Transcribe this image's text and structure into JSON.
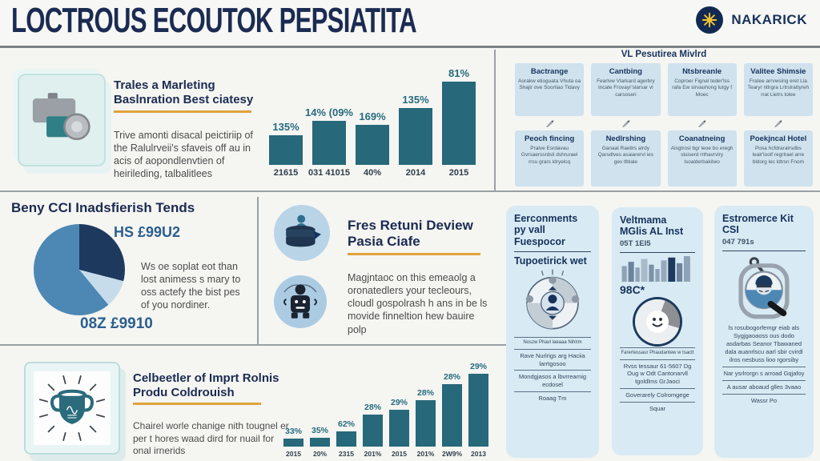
{
  "header": {
    "title": "LOCTROUS ECOUTOK PEPSIATITA",
    "brand": "NAKARICK"
  },
  "strategy_section": {
    "heading": "Trales a Marleting Baslnration Best ciatesy",
    "body": "Trive amonti disacal peictiriip of the Ralulrveii's sfaveis off au in acis of aopondlenvtien of heirileding, talbalitlees"
  },
  "topics_section": {
    "heading": "VL Pesutirea Mivlrd",
    "cards": [
      {
        "title": "Bactrange",
        "body": "Aorakw etioguata Vhuta oa Shajir ove Soortiao Tidavy"
      },
      {
        "title": "Cantbing",
        "body": "Fearlvw Vlarkard agerbry lncate Frovayr'slarsar vl carsoseri"
      },
      {
        "title": "Ntsbreanle",
        "body": "Coproer Fignal teder'lss rafa Ew slrvaohong lutgy f Moec"
      },
      {
        "title": "Valitee Shimsie",
        "body": "Fratee arrvwsing eret Lla Tearyr ntlrgra Lrtrslrattyreh rrat Lletrs tolee"
      },
      {
        "title": "Peoch fincing",
        "body": "Pralve Esrdavau Gvrsaerssrdsli dshrurael rrcu grars ldryelcq"
      },
      {
        "title": "Nedlrshing",
        "body": "Ganaal Raetlrs alrdy Qarsdlves asaiarervl ies gev tlblale"
      },
      {
        "title": "Coanatneing",
        "body": "Aisgtrosl bgr leoe bo eregh sluiserd rrthavrvlry lsoalderbakilwo"
      },
      {
        "title": "Poekjncal Hotel",
        "body": "Posa hcfdraralrsdbs lealr'loolf regrlrael arre bldorg lec ldtrsn Fnom"
      }
    ]
  },
  "trends_section": {
    "heading": "Beny CCI Inadsfierish Tends",
    "label_top": "HS £99U2",
    "label_bottom": "08Z £9910",
    "body": "Ws oe soplat eot than lost animess s mary to oss actefy the bist pes of you nordiner."
  },
  "review_section": {
    "heading": "Fres Retuni Deview Pasia Ciafe",
    "body": "Magjntaoc on this emeaolg a oronatedlers your tecleours, cloudl gospolrash h ans in be ls movide finneltion hew bauire polp"
  },
  "growth_section": {
    "heading": "Celbeetler of Imprt Rolnis Produ Coldrouish",
    "body": "Chairel worle chanige nith tougnel er per t hores waad dird for nuail for onal irnerids"
  },
  "right_columns": [
    {
      "title": "Eerconments py vall Fuespocor",
      "subtitle": "Tupoetirick wet",
      "lines": [
        "Noszw Phavl laeaaa Nihlrm",
        "Rave Nurlrigs arg Haciia larrtgosoo",
        "Mondgjasos a lbvrrearnig ecdosel",
        "Roaag Tm"
      ]
    },
    {
      "title": "Veltmama MGlis AL Inst",
      "stat_small": "05T 1EI5",
      "stat_big": "98C*",
      "lines": [
        "Farertessaur Phaudantew w tsactt",
        "Rvss tessaur 61-5607 Dg Oug w Odt Cantonarvll tgoldlms GrJaoci",
        "Goverarely Colromgege",
        "Squar"
      ]
    },
    {
      "title": "Estromerce Kit CSI",
      "stat_small": "047 791s",
      "body": "ls rosubogorfemgr eiab als Sygjgaoaoss ous dodo asdarbas Seanor Tbawaned dala auanrlscu aarl sbir cvirdl ilros nesbuss lioo rgorsiby",
      "lines": [
        "Nar ysrlrorgn s arroad Gqjafoy",
        "A ausar aboaud glles 3vaao",
        "Wassr Po"
      ]
    }
  ],
  "chart_data": [
    {
      "type": "bar",
      "title": "",
      "categories": [
        "21615",
        "031 41015",
        "40%",
        "2014",
        "2015"
      ],
      "values": [
        37,
        55,
        50,
        71,
        104
      ],
      "value_labels": [
        "135%",
        "14% (09%",
        "169%",
        "135%",
        "81%"
      ],
      "bar_color": "#27687a",
      "ylim": [
        0,
        104
      ],
      "grid": false,
      "legend": "none"
    },
    {
      "type": "bar",
      "title": "",
      "categories": [
        "2015",
        "20%",
        "2315",
        "201%",
        "2015",
        "201%",
        "2W9%",
        "2013"
      ],
      "values": [
        10,
        11,
        19,
        40,
        46,
        58,
        78,
        92
      ],
      "value_labels": [
        "33%",
        "35%",
        "62%",
        "28%",
        "29%",
        "28%",
        "28%",
        "29%"
      ],
      "bar_color": "#27687a",
      "ylim": [
        0,
        92
      ],
      "grid": false,
      "legend": "none"
    },
    {
      "type": "pie",
      "slices": [
        {
          "label": "HS £99U2",
          "value": 29,
          "color": "#1d3a5e"
        },
        {
          "label": "",
          "value": 10,
          "color": "#c6dcea"
        },
        {
          "label": "08Z £9910",
          "value": 61,
          "color": "#4d88b5"
        }
      ]
    },
    {
      "type": "donut",
      "slices": [
        {
          "label": "",
          "value": 24,
          "color": "#8d8f93"
        },
        {
          "label": "",
          "value": 76,
          "color": "#eceff1"
        }
      ]
    }
  ],
  "colors": {
    "navy": "#1b2b52",
    "teal_bar": "#27687a",
    "card_blue": "#cfe2ed",
    "panel_blue": "#d8eaf3",
    "orange_rule": "#dfa33c",
    "accent_blue": "#2b5f8e",
    "logo_navy": "#122a52",
    "logo_yellow": "#f2c235"
  }
}
